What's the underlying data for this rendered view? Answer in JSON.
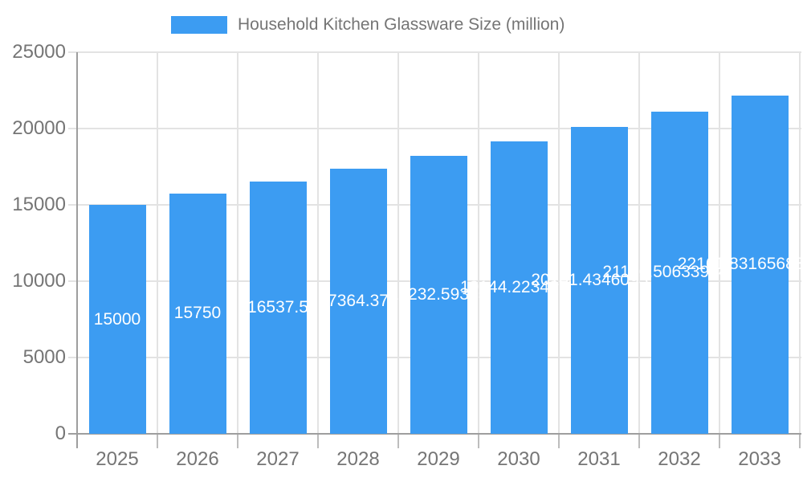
{
  "legend": {
    "label": "Household Kitchen Glassware Size (million)"
  },
  "colors": {
    "bar": "#3C9CF2",
    "axis_text": "#757575",
    "axis_line": "#9E9E9E",
    "gridline": "#E3E3E3",
    "tick": "#BDBDBD",
    "bar_label": "#FFFFFF"
  },
  "chart_data": {
    "type": "bar",
    "title": "Household Kitchen Glassware Size (million)",
    "categories": [
      "2025",
      "2026",
      "2027",
      "2028",
      "2029",
      "2030",
      "2031",
      "2032",
      "2033"
    ],
    "values": [
      15000,
      15750,
      16537.5,
      17364.375,
      18232.59375,
      19144.2234375,
      20101.434609375,
      21106.50633984375,
      22161.831656835937
    ],
    "value_labels": [
      "15000",
      "15750",
      "16537.5",
      "17364.375",
      "18232.59375",
      "19144.2234375",
      "20101.434609375",
      "21106.50633984375",
      "22161.831656835938"
    ],
    "xlabel": "",
    "ylabel": "",
    "ylim": [
      0,
      25000
    ],
    "yticks": [
      0,
      5000,
      10000,
      15000,
      20000,
      25000
    ],
    "grid": true,
    "legend_position": "top",
    "value_label_position": "inside-middle"
  }
}
